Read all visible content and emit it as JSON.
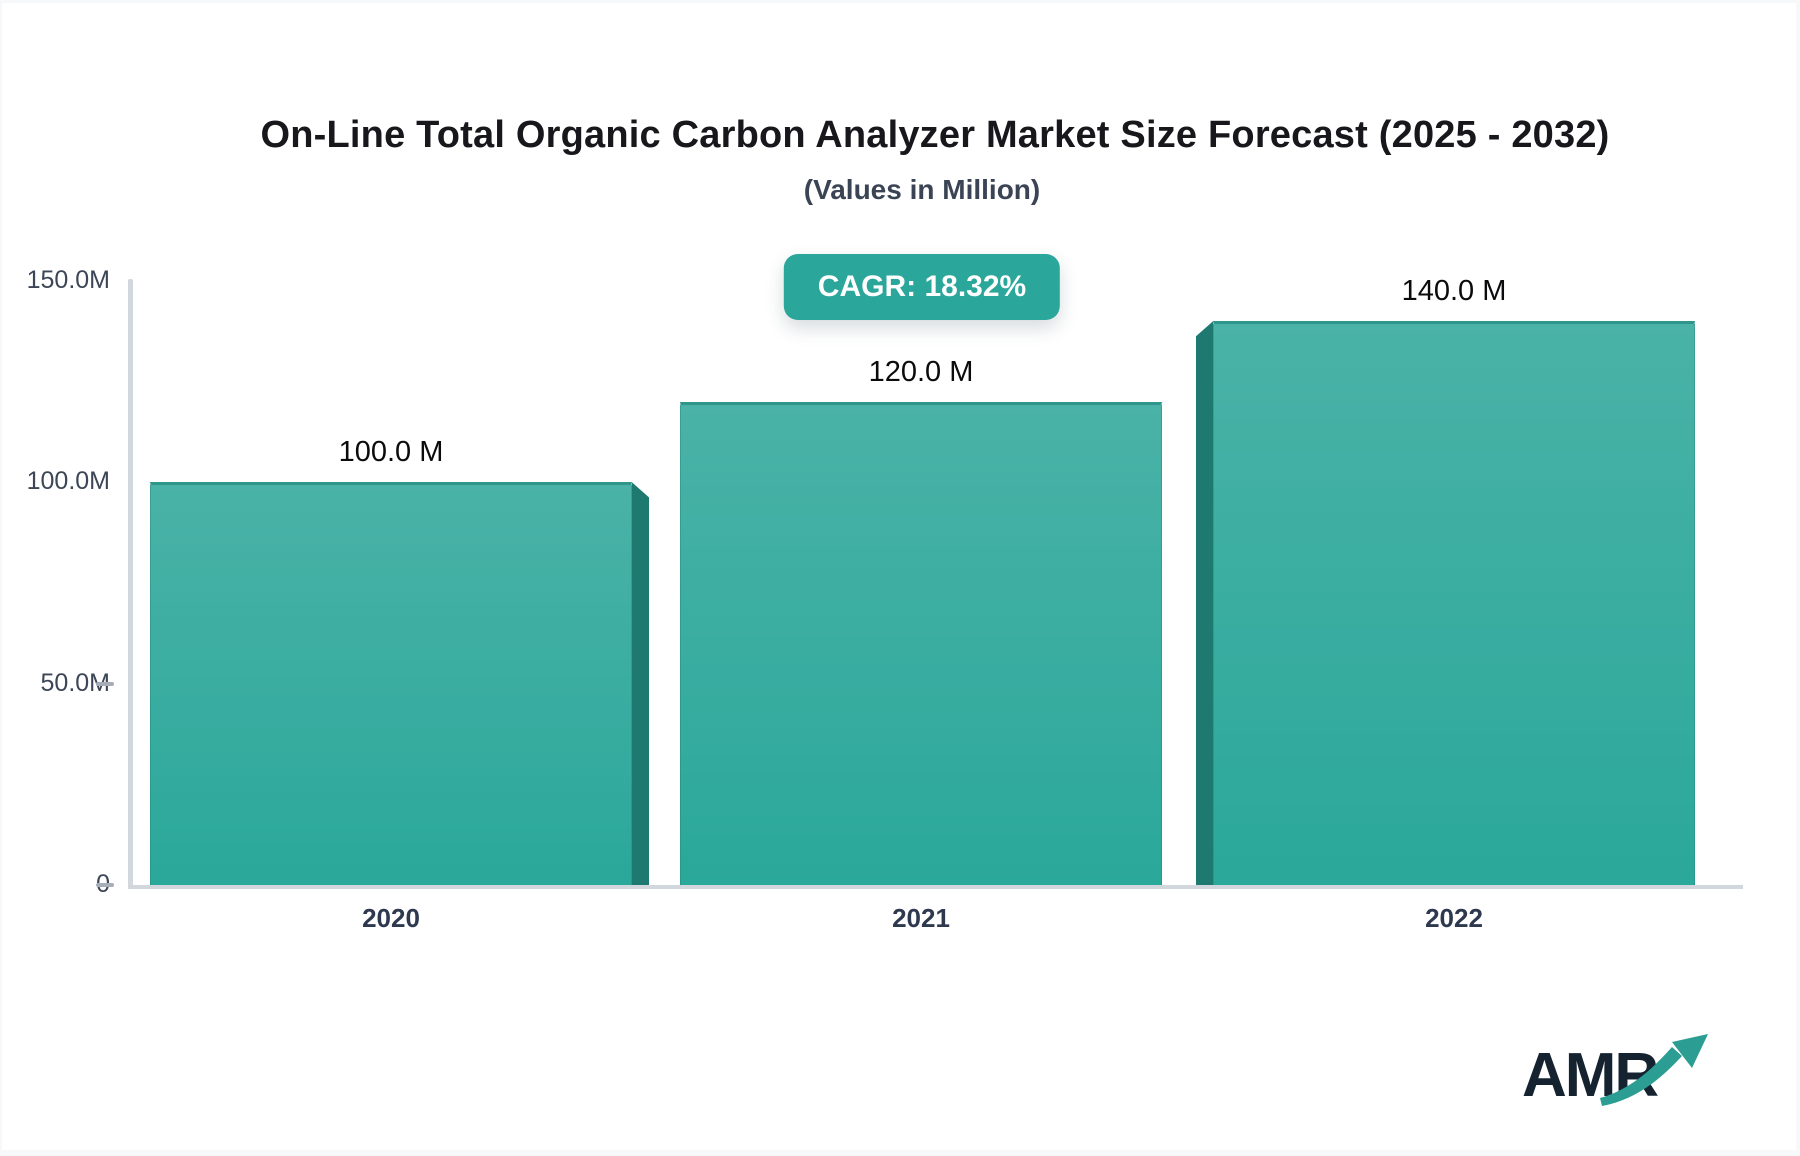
{
  "title": "On-Line Total Organic Carbon Analyzer Market Size Forecast (2025 - 2032)",
  "subtitle": "(Values in Million)",
  "badge": {
    "label": "CAGR: 18.32%"
  },
  "logo": {
    "text": "AMR"
  },
  "chart_data": {
    "type": "bar",
    "categories": [
      "2020",
      "2021",
      "2022"
    ],
    "values": [
      100.0,
      120.0,
      140.0
    ],
    "value_labels": [
      "100.0 M",
      "120.0 M",
      "140.0 M"
    ],
    "title": "On-Line Total Organic Carbon Analyzer Market Size Forecast (2025 - 2032)",
    "subtitle": "(Values in Million)",
    "xlabel": "",
    "ylabel": "",
    "ylim": [
      0,
      150
    ],
    "yticks": [
      0,
      50,
      100,
      150
    ],
    "ytick_labels": [
      "0",
      "50.0M",
      "100.0M",
      "150.0M"
    ],
    "ytick_dash": [
      true,
      true,
      false,
      false
    ],
    "grid": "off",
    "legend": "none",
    "annotations": [
      "CAGR: 18.32%"
    ]
  },
  "colors": {
    "page_bg": "#f6f8fa",
    "bar_top": "#4ab2a7",
    "bar_bottom": "#2aa89a",
    "bar_edge": "#1e7a70",
    "bar_border": "#2f968c",
    "badge_bg": "#2aa69b",
    "axis": "#d2d6dd",
    "tick": "#a6adb8",
    "title": "#17171c",
    "subtitle": "#3a4454",
    "axis_label": "#3c4656",
    "xlabel": "#2e3950",
    "value_label": "#0b0b0d",
    "logo_text": "#152330",
    "logo_arrow": "#2b9d92"
  }
}
